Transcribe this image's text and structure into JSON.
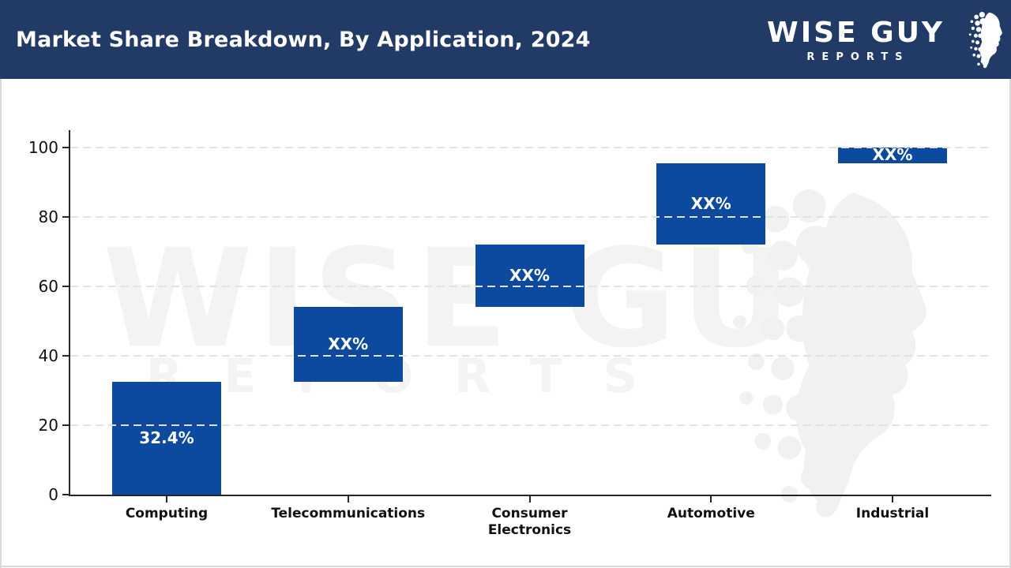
{
  "header": {
    "title": "Market Share Breakdown, By Application, 2024",
    "logo": {
      "line1": "WISE GUY",
      "line2": "REPORTS"
    }
  },
  "watermark": {
    "line1": "WISE GUY",
    "line2": "REPORTS"
  },
  "chart_data": {
    "type": "bar",
    "subtype": "waterfall",
    "title": "Market Share Breakdown, By Application, 2024",
    "categories": [
      "Computing",
      "Telecommunications",
      "Consumer\nElectronics",
      "Automotive",
      "Industrial"
    ],
    "segments": [
      {
        "category": "Computing",
        "start": 0,
        "end": 32.4,
        "increment": 32.4,
        "label": "32.4%"
      },
      {
        "category": "Telecommunications",
        "start": 32.4,
        "end": 54.0,
        "increment": 21.6,
        "label": "XX%"
      },
      {
        "category": "Consumer Electronics",
        "start": 54.0,
        "end": 72.0,
        "increment": 18.0,
        "label": "XX%"
      },
      {
        "category": "Automotive",
        "start": 72.0,
        "end": 95.4,
        "increment": 23.4,
        "label": "XX%"
      },
      {
        "category": "Industrial",
        "start": 95.4,
        "end": 100.0,
        "increment": 4.6,
        "label": "XX%"
      }
    ],
    "xlabel": "",
    "ylabel": "",
    "ylim": [
      0,
      106
    ],
    "yticks": [
      0,
      20,
      40,
      60,
      80,
      100
    ],
    "grid": "horizontal-dashed",
    "legend": "none",
    "bar_color": "#0b4a9e",
    "bar_label_color": "#ffffff",
    "axis_color": "#262626",
    "grid_color": "#e2e2e2",
    "header_color": "#213a66"
  }
}
